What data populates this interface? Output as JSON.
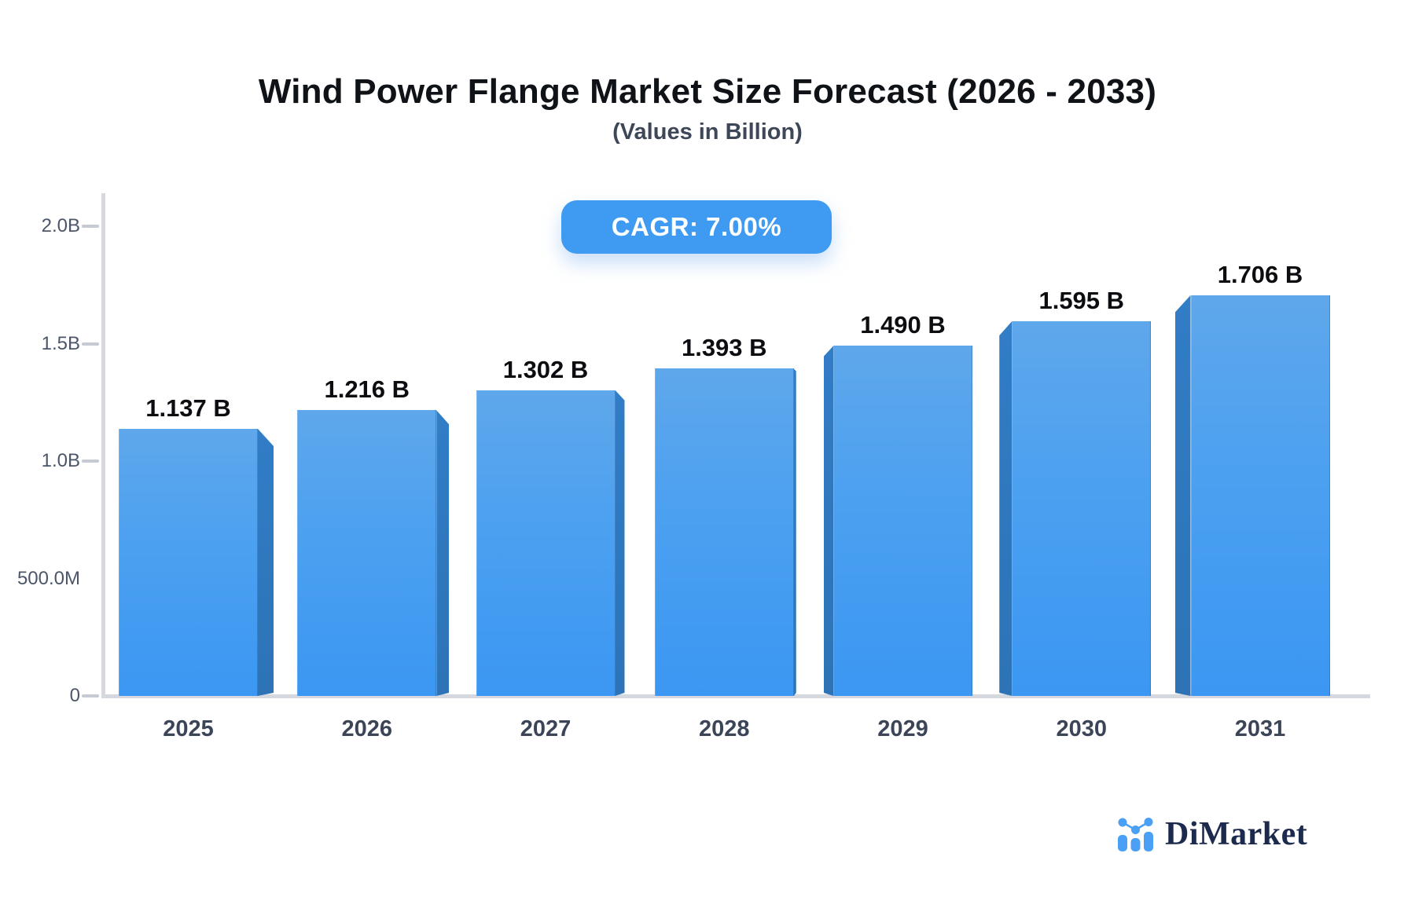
{
  "header": {
    "title": "Wind Power Flange Market Size Forecast (2026 - 2033)",
    "subtitle": "(Values in Billion)"
  },
  "badge": {
    "label": "CAGR: 7.00%"
  },
  "logo": {
    "text": "DiMarket",
    "icon": "mini-bar-chart-with-dots-icon"
  },
  "chart_data": {
    "type": "bar",
    "title": "Wind Power Flange Market Size Forecast (2026 - 2033)",
    "subtitle": "(Values in Billion)",
    "categories": [
      "2025",
      "2026",
      "2027",
      "2028",
      "2029",
      "2030",
      "2031"
    ],
    "values": [
      1.137,
      1.216,
      1.302,
      1.393,
      1.49,
      1.595,
      1.706
    ],
    "value_labels": [
      "1.137 B",
      "1.216 B",
      "1.302 B",
      "1.393 B",
      "1.490 B",
      "1.595 B",
      "1.706 B"
    ],
    "series_unit": "Billion",
    "xlabel": "",
    "ylabel": "",
    "ylim": [
      0,
      2.0
    ],
    "yticks": [
      {
        "label": "2.0B",
        "value": 2.0,
        "dash": true
      },
      {
        "label": "1.5B",
        "value": 1.5,
        "dash": true
      },
      {
        "label": "1.0B",
        "value": 1.0,
        "dash": true
      },
      {
        "label": "500.0M",
        "value": 0.5,
        "dash": false
      },
      {
        "label": "0",
        "value": 0.0,
        "dash": true
      }
    ],
    "grid": false,
    "legend": null,
    "style_3d": true
  },
  "colors": {
    "accent_blue": "#3f9bf2",
    "bar_face_top": "#5fa7eb",
    "bar_face_mid": "#4da1f0",
    "bar_face_bottom": "#3b97f2",
    "bar_side_top": "#317dc6",
    "bar_side_bottom": "#2d73b6",
    "axis_gray": "#d5d8df",
    "logo_navy": "#1c2b4d",
    "logo_blue": "#4aa0f5"
  }
}
